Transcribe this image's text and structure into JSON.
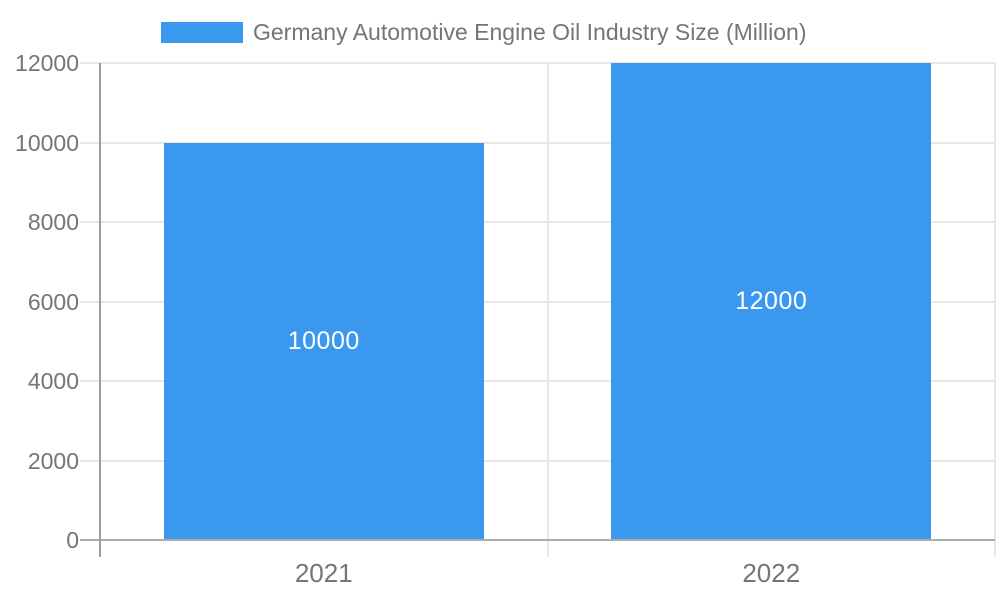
{
  "chart_data": {
    "type": "bar",
    "title": "Germany Automotive Engine Oil Industry Size (Million)",
    "categories": [
      "2021",
      "2022"
    ],
    "series": [
      {
        "name": "Germany Automotive Engine Oil Industry Size (Million)",
        "values": [
          10000,
          12000
        ]
      }
    ],
    "values": [
      10000,
      12000
    ],
    "bar_labels": [
      "10000",
      "12000"
    ],
    "ylim": [
      0,
      12000
    ],
    "yticks": [
      0,
      2000,
      4000,
      6000,
      8000,
      10000,
      12000
    ],
    "ytick_labels": [
      "0",
      "2000",
      "4000",
      "6000",
      "8000",
      "10000",
      "12000"
    ],
    "xlabel": "",
    "ylabel": "",
    "grid": true,
    "legend_position": "top",
    "colors": {
      "bar": "#3A99EE",
      "bar_label_text": "#FFFFFF",
      "axis_text": "#757575",
      "gridline": "#E7E7E7",
      "axis_line": "#9E9E9E",
      "baseline": "#ABABAB",
      "background": "#FFFFFF"
    }
  }
}
